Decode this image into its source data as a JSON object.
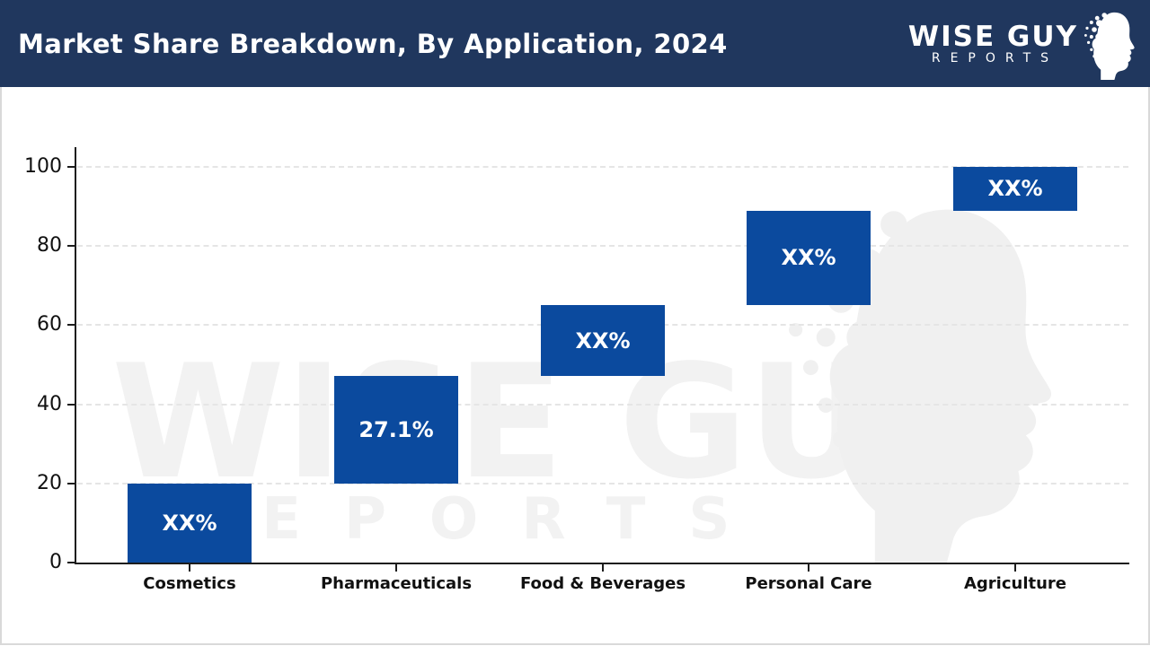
{
  "header": {
    "title": "Market Share Breakdown, By Application, 2024",
    "logo": {
      "wordmark": "WISE GUY",
      "subtext": "REPORTS"
    }
  },
  "watermark": {
    "line1": "WISE GUY",
    "line2": "REPORTS"
  },
  "colors": {
    "header_bg": "#20375e",
    "bar": "#0b4a9e",
    "bar_label": "#ffffff",
    "axis": "#1c1c1c",
    "grid": "#e5e5e5",
    "watermark": "#f2f2f2",
    "tick_label": "#111111",
    "frame_border": "#d9d9d9"
  },
  "chart_data": {
    "type": "bar",
    "subtype": "floating-waterfall",
    "title": "Market Share Breakdown, By Application, 2024",
    "categories": [
      "Cosmetics",
      "Pharmaceuticals",
      "Food & Beverages",
      "Personal Care",
      "Agriculture"
    ],
    "series": [
      {
        "name": "Market Share",
        "segments": [
          {
            "category": "Cosmetics",
            "start": 0,
            "end": 20,
            "label": "XX%"
          },
          {
            "category": "Pharmaceuticals",
            "start": 20,
            "end": 47.1,
            "label": "27.1%"
          },
          {
            "category": "Food & Beverages",
            "start": 47.1,
            "end": 65,
            "label": "XX%"
          },
          {
            "category": "Personal Care",
            "start": 65,
            "end": 89,
            "label": "XX%"
          },
          {
            "category": "Agriculture",
            "start": 89,
            "end": 100,
            "label": "XX%"
          }
        ]
      }
    ],
    "xlabel": "",
    "ylabel": "",
    "ylim": [
      0,
      100
    ],
    "yticks": [
      0,
      20,
      40,
      60,
      80,
      100
    ],
    "grid": "horizontal-dashed",
    "legend": "none"
  }
}
